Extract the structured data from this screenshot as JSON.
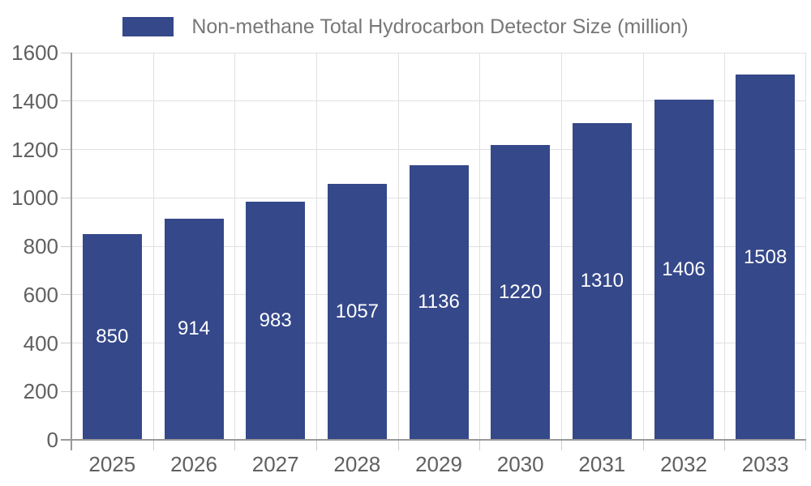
{
  "legend": {
    "label": "Non-methane Total Hydrocarbon Detector Size (million)"
  },
  "chart_data": {
    "type": "bar",
    "title": "Non-methane Total Hydrocarbon Detector Size (million)",
    "categories": [
      "2025",
      "2026",
      "2027",
      "2028",
      "2029",
      "2030",
      "2031",
      "2032",
      "2033"
    ],
    "values": [
      850,
      914,
      983,
      1057,
      1136,
      1220,
      1310,
      1406,
      1508
    ],
    "xlabel": "",
    "ylabel": "",
    "ylim": [
      0,
      1600
    ],
    "yticks": [
      0,
      200,
      400,
      600,
      800,
      1000,
      1200,
      1400,
      1600
    ],
    "grid": true,
    "legend_position": "top",
    "value_labels": "inside-center"
  },
  "colors": {
    "bar": "#35488A",
    "value_label": "#ffffff",
    "grid": "#e0e0e0",
    "tick": "#cccccc",
    "axis_line": "#999999",
    "axis_label": "#606060",
    "legend_text": "#777777",
    "background": "#ffffff"
  }
}
